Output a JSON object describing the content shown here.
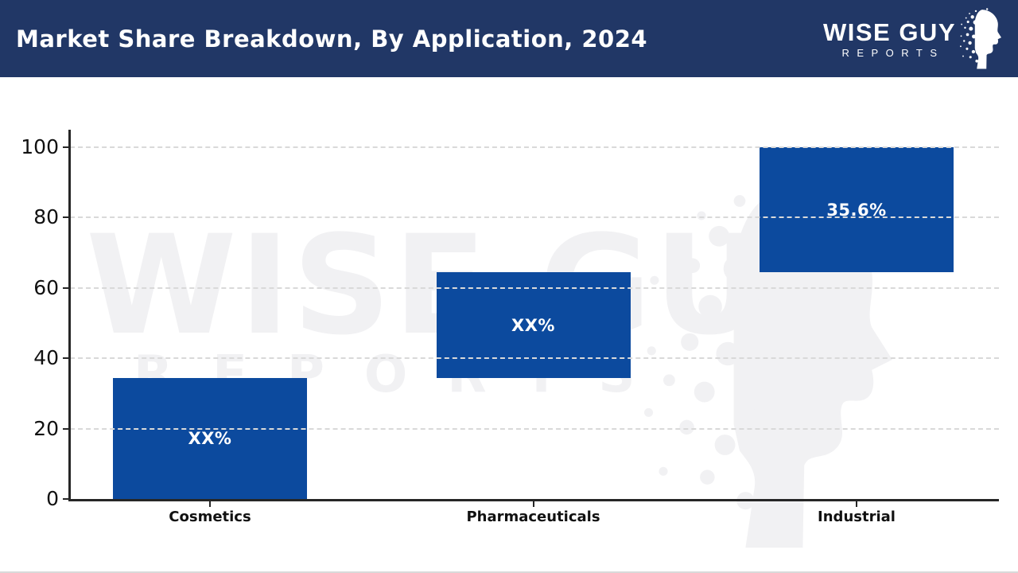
{
  "header": {
    "title": "Market Share Breakdown, By Application, 2024",
    "logo": {
      "line1": "WISE GUY",
      "line2": "REPORTS"
    }
  },
  "watermark": {
    "line1": "WISE GUY",
    "line2": "REPORTS"
  },
  "colors": {
    "header_bg": "#213766",
    "bar": "#0c4a9e",
    "grid": "#d9d9d9",
    "axis": "#262626",
    "bar_label": "#ffffff",
    "watermark": "#f1f1f3",
    "tick_label": "#111111"
  },
  "chart_data": {
    "type": "bar",
    "subtype": "floating-waterfall",
    "title": "Market Share Breakdown, By Application, 2024",
    "categories": [
      "Cosmetics",
      "Pharmaceuticals",
      "Industrial"
    ],
    "bars": [
      {
        "category": "Cosmetics",
        "start": 0,
        "end": 34.4,
        "label": "XX%"
      },
      {
        "category": "Pharmaceuticals",
        "start": 34.4,
        "end": 64.4,
        "label": "XX%"
      },
      {
        "category": "Industrial",
        "start": 64.4,
        "end": 100,
        "label": "35.6%"
      }
    ],
    "xlabel": "",
    "ylabel": "",
    "yticks": [
      0,
      20,
      40,
      60,
      80,
      100
    ],
    "ylim": [
      0,
      105
    ],
    "grid": "horizontal-dashed",
    "legend": "none"
  }
}
